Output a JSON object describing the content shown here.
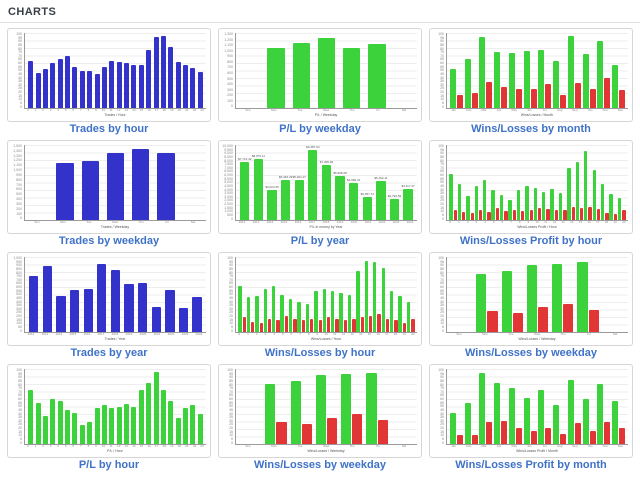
{
  "header": {
    "title": "CHARTS"
  },
  "colors": {
    "trades_bar": "#3333cc",
    "win_bar": "#3bd23b",
    "loss_bar": "#e23535",
    "caption_text": "#3f72c8"
  },
  "chart_data": [
    {
      "caption": "Trades by hour",
      "type": "bar",
      "color": "trades",
      "xlabel": "Trades / Hour",
      "ymax": 100,
      "ytick_step": 5,
      "categories": [
        "0",
        "1",
        "2",
        "3",
        "4",
        "5",
        "6",
        "7",
        "8",
        "9",
        "10",
        "11",
        "12",
        "13",
        "14",
        "15",
        "16",
        "17",
        "18",
        "19",
        "20",
        "21",
        "22",
        "23"
      ],
      "values": [
        63,
        47,
        52,
        60,
        65,
        70,
        55,
        50,
        50,
        46,
        55,
        63,
        62,
        60,
        57,
        57,
        78,
        95,
        96,
        82,
        62,
        57,
        53,
        48
      ]
    },
    {
      "caption": "P/L by weekday",
      "type": "bar",
      "color": "profit",
      "xlabel": "P/L / Weekday",
      "ymax": 1300,
      "ytick_step": 100,
      "categories": [
        "Sun",
        "Mon",
        "Tue",
        "Wed",
        "Thu",
        "Fri",
        "Sat"
      ],
      "values": [
        0,
        1040,
        1120,
        1220,
        1035,
        1105,
        0
      ]
    },
    {
      "caption": "Wins/Losses by month",
      "type": "grouped_bar",
      "xlabel": "Wins/Losses / Month",
      "ymax": 100,
      "ytick_step": 5,
      "categories": [
        "Jan",
        "Feb",
        "Mar",
        "Apr",
        "May",
        "Jun",
        "Jul",
        "Aug",
        "Sep",
        "Oct",
        "Nov",
        "Dec"
      ],
      "series": [
        {
          "name": "Wins",
          "values": [
            52,
            65,
            95,
            75,
            74,
            76,
            78,
            63,
            96,
            72,
            90,
            58
          ]
        },
        {
          "name": "Losses",
          "values": [
            17,
            20,
            35,
            28,
            25,
            26,
            32,
            18,
            34,
            25,
            40,
            24
          ]
        }
      ]
    },
    {
      "caption": "Trades by weekday",
      "type": "bar",
      "color": "trades",
      "xlabel": "Trades / Weekday",
      "ymax": 1500,
      "ytick_step": 100,
      "categories": [
        "Sun",
        "Mon",
        "Tue",
        "Wed",
        "Thu",
        "Fri",
        "Sat"
      ],
      "values": [
        0,
        1150,
        1190,
        1350,
        1420,
        1350,
        0
      ]
    },
    {
      "caption": "P/L by year",
      "type": "bar",
      "color": "profit",
      "xlabel": "P/L in money by Year",
      "ymax": 10000,
      "ytick_step": 500,
      "categories": [
        "2012",
        "2013",
        "2014",
        "2015",
        "2016",
        "2017",
        "2018",
        "2019",
        "2020",
        "2021",
        "2022",
        "2023",
        "2024"
      ],
      "values": [
        7712,
        8075,
        4023,
        5346,
        5291,
        9388,
        7396,
        5908,
        4982,
        3058,
        5162,
        2793,
        4117
      ],
      "bar_labels": [
        "$7,712.42",
        "$8,075.11",
        "$4,023.35",
        "$5,346.29",
        "$5,291.07",
        "$9,387.64",
        "$7,395.96",
        "$5,908.28",
        "$4,982.31",
        "$3,057.74",
        "$5,162.11",
        "$2,792.59",
        "$4,117.47"
      ]
    },
    {
      "caption": "Wins/Losses Profit by hour",
      "type": "grouped_bar",
      "xlabel": "Wins/Losses Profit / Hour",
      "ymax": 100,
      "ytick_step": 5,
      "categories": [
        "0",
        "1",
        "2",
        "3",
        "4",
        "5",
        "6",
        "7",
        "8",
        "9",
        "10",
        "11",
        "12",
        "13",
        "14",
        "15",
        "16",
        "17",
        "18",
        "19",
        "20"
      ],
      "series": [
        {
          "name": "Wins",
          "values": [
            62,
            48,
            32,
            46,
            54,
            40,
            33,
            27,
            40,
            46,
            43,
            38,
            42,
            36,
            70,
            77,
            92,
            67,
            48,
            35,
            30
          ]
        },
        {
          "name": "Losses",
          "values": [
            14,
            11,
            9,
            13,
            11,
            16,
            12,
            13,
            12,
            14,
            16,
            15,
            14,
            13,
            17,
            16,
            17,
            15,
            10,
            8,
            14
          ]
        }
      ]
    },
    {
      "caption": "Trades by year",
      "type": "bar",
      "color": "trades",
      "xlabel": "Trades / Year",
      "ymax": 1000,
      "ytick_step": 50,
      "categories": [
        "2012",
        "2013",
        "2014",
        "2015",
        "2016",
        "2017",
        "2018",
        "2019",
        "2020",
        "2021",
        "2022",
        "2023",
        "2024"
      ],
      "values": [
        750,
        880,
        480,
        560,
        570,
        910,
        830,
        640,
        650,
        330,
        560,
        320,
        470
      ]
    },
    {
      "caption": "Wins/Losses by hour",
      "type": "grouped_bar",
      "xlabel": "Wins/Losses / Hour",
      "ymax": 100,
      "ytick_step": 5,
      "categories": [
        "0",
        "1",
        "2",
        "3",
        "4",
        "5",
        "6",
        "7",
        "8",
        "9",
        "10",
        "11",
        "12",
        "13",
        "14",
        "15",
        "16",
        "17",
        "18",
        "19",
        "20"
      ],
      "series": [
        {
          "name": "Wins",
          "values": [
            62,
            47,
            48,
            58,
            62,
            50,
            44,
            40,
            38,
            55,
            58,
            55,
            52,
            50,
            82,
            95,
            93,
            85,
            55,
            48,
            40
          ]
        },
        {
          "name": "Losses",
          "values": [
            20,
            14,
            12,
            18,
            16,
            22,
            18,
            16,
            18,
            16,
            20,
            18,
            16,
            18,
            20,
            22,
            24,
            18,
            16,
            12,
            18
          ]
        }
      ]
    },
    {
      "caption": "Wins/Losses by weekday",
      "type": "grouped_bar",
      "xlabel": "Wins/Losses / Weekday",
      "ymax": 100,
      "ytick_step": 5,
      "categories": [
        "Sun",
        "Mon",
        "Tue",
        "Wed",
        "Thu",
        "Fri",
        "Sat"
      ],
      "series": [
        {
          "name": "Wins",
          "values": [
            0,
            78,
            82,
            90,
            91,
            93,
            0
          ]
        },
        {
          "name": "Losses",
          "values": [
            0,
            28,
            26,
            33,
            38,
            30,
            0
          ]
        }
      ]
    },
    {
      "caption": "P/L by hour",
      "type": "bar",
      "color": "profit",
      "xlabel": "P/L / Hour",
      "ymax": 100,
      "ytick_step": 5,
      "categories": [
        "0",
        "1",
        "2",
        "3",
        "4",
        "5",
        "6",
        "7",
        "8",
        "9",
        "10",
        "11",
        "12",
        "13",
        "14",
        "15",
        "16",
        "17",
        "18",
        "19",
        "20",
        "21",
        "22",
        "23"
      ],
      "values": [
        72,
        55,
        38,
        60,
        57,
        45,
        42,
        25,
        29,
        48,
        52,
        48,
        50,
        54,
        50,
        72,
        82,
        96,
        72,
        58,
        35,
        48,
        52,
        40
      ]
    },
    {
      "caption": "Wins/Losses by weekday",
      "type": "grouped_bar",
      "xlabel": "Wins/Losses / Weekday",
      "ymax": 100,
      "ytick_step": 5,
      "categories": [
        "Sun",
        "Mon",
        "Tue",
        "Wed",
        "Thu",
        "Fri",
        "Sat"
      ],
      "series": [
        {
          "name": "Wins",
          "values": [
            0,
            80,
            84,
            92,
            93,
            95,
            0
          ]
        },
        {
          "name": "Losses",
          "values": [
            0,
            29,
            27,
            35,
            40,
            32,
            0
          ]
        }
      ]
    },
    {
      "caption": "Wins/Losses Profit by month",
      "type": "grouped_bar",
      "xlabel": "Wins/Losses Profit / Month",
      "ymax": 100,
      "ytick_step": 5,
      "categories": [
        "Jan",
        "Feb",
        "Mar",
        "Apr",
        "May",
        "Jun",
        "Jul",
        "Aug",
        "Sep",
        "Oct",
        "Nov",
        "Dec"
      ],
      "series": [
        {
          "name": "Wins",
          "values": [
            42,
            55,
            95,
            82,
            75,
            62,
            72,
            52,
            86,
            60,
            80,
            58
          ]
        },
        {
          "name": "Losses",
          "values": [
            12,
            12,
            30,
            31,
            22,
            18,
            22,
            13,
            28,
            17,
            29,
            21
          ]
        }
      ]
    }
  ]
}
